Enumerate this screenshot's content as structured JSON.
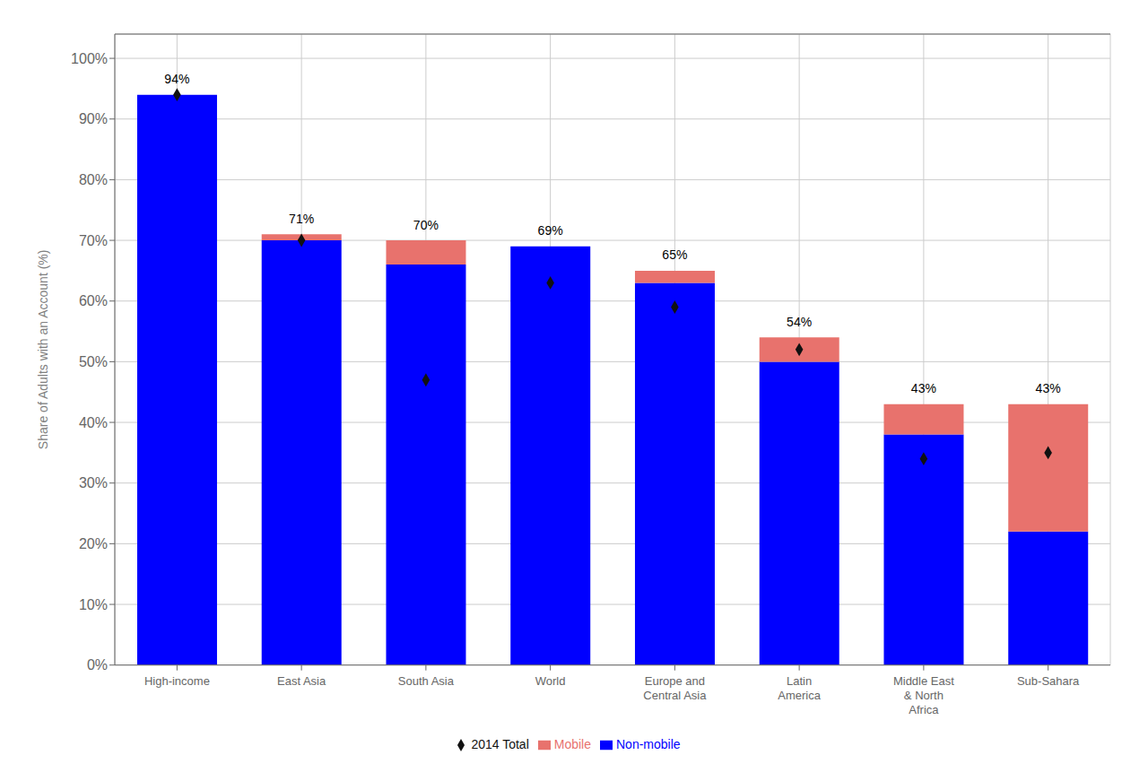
{
  "chart_data": {
    "type": "bar",
    "stacked": true,
    "grid": true,
    "legend": "bottom",
    "ylabel": "Share of Adults with an Account (%)",
    "categories": [
      "High-income",
      "East Asia",
      "South Asia",
      "World",
      "Europe and\nCentral Asia",
      "Latin\nAmerica",
      "Middle East\n& North\nAfrica",
      "Sub-Sahara"
    ],
    "series": [
      {
        "name": "Non-mobile",
        "type": "bar",
        "color": "#0000FF",
        "values": [
          94,
          70,
          66,
          69,
          63,
          50,
          38,
          22
        ]
      },
      {
        "name": "Mobile",
        "type": "bar",
        "color": "#E8726D",
        "values": [
          0,
          1,
          4,
          0,
          2,
          4,
          5,
          21
        ]
      },
      {
        "name": "2014 Total",
        "type": "scatter",
        "marker": "diamond",
        "color": "#111111",
        "values": [
          94,
          70,
          47,
          63,
          59,
          52,
          34,
          35
        ]
      }
    ],
    "totals": [
      94,
      71,
      70,
      69,
      65,
      54,
      43,
      43
    ],
    "total_labels": [
      "94%",
      "71%",
      "70%",
      "69%",
      "65%",
      "54%",
      "43%",
      "43%"
    ],
    "ylim": [
      0,
      104
    ],
    "yticks": [
      {
        "value": 0,
        "label": "0%"
      },
      {
        "value": 10,
        "label": "10%"
      },
      {
        "value": 20,
        "label": "20%"
      },
      {
        "value": 30,
        "label": "30%"
      },
      {
        "value": 40,
        "label": "40%"
      },
      {
        "value": 50,
        "label": "50%"
      },
      {
        "value": 60,
        "label": "60%"
      },
      {
        "value": 70,
        "label": "70%"
      },
      {
        "value": 80,
        "label": "80%"
      },
      {
        "value": 90,
        "label": "90%"
      },
      {
        "value": 100,
        "label": "100%"
      }
    ]
  }
}
